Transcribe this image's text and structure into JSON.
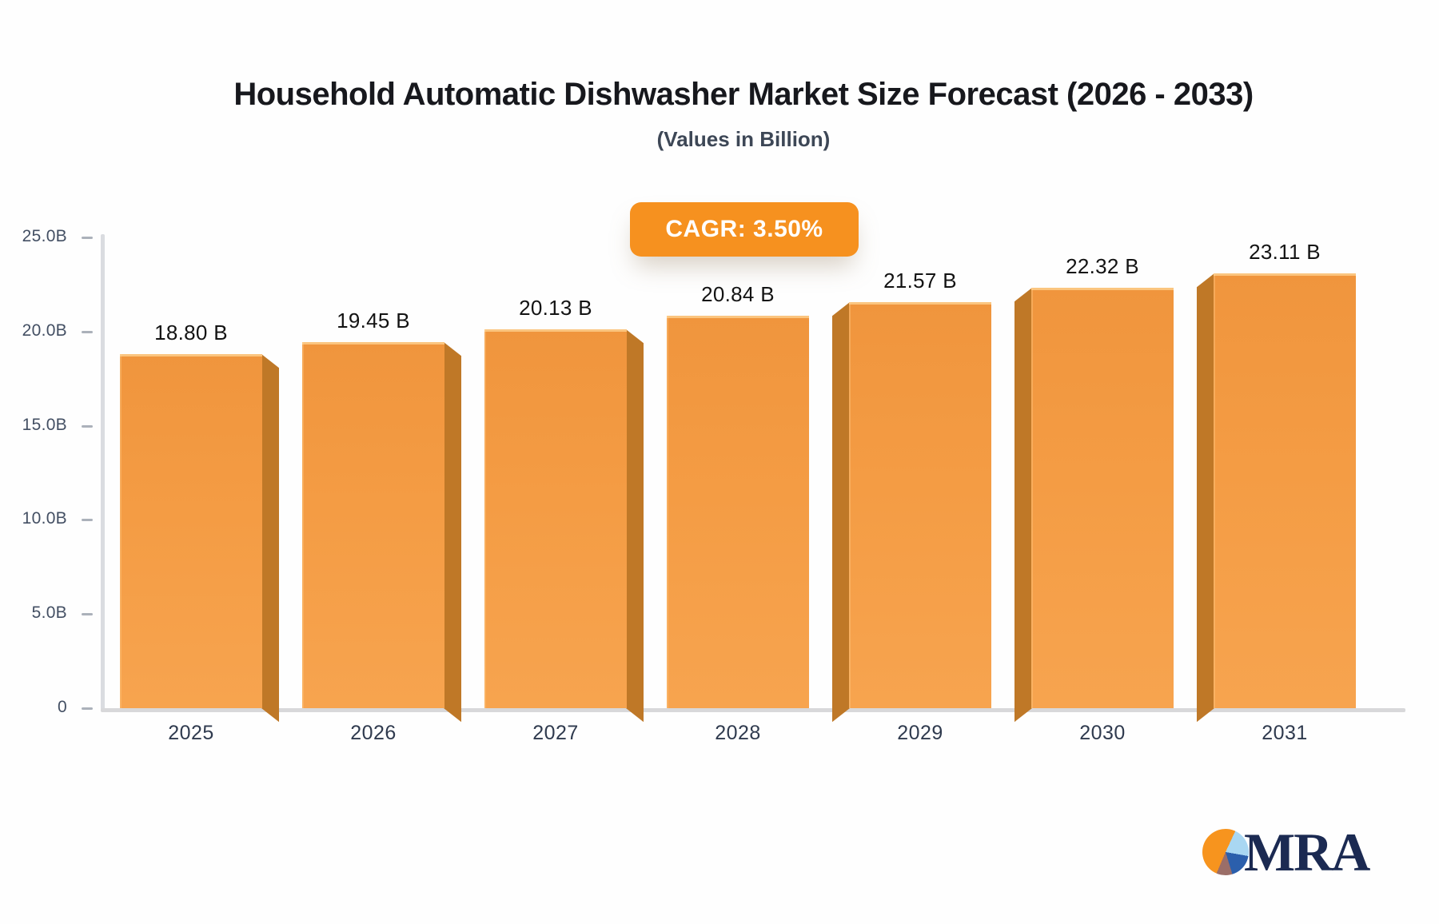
{
  "header": {
    "title": "Household Automatic Dishwasher Market Size Forecast (2026 - 2033)",
    "subtitle": "(Values in Billion)"
  },
  "badge": {
    "label": "CAGR: 3.50%"
  },
  "chart_data": {
    "type": "bar",
    "title": "Household Automatic Dishwasher Market Size Forecast (2026 - 2033)",
    "subtitle": "(Values in Billion)",
    "categories": [
      "2025",
      "2026",
      "2027",
      "2028",
      "2029",
      "2030",
      "2031"
    ],
    "values": [
      18.8,
      19.45,
      20.13,
      20.84,
      21.57,
      22.32,
      23.11
    ],
    "value_labels": [
      "18.80 B",
      "19.45 B",
      "20.13 B",
      "20.84 B",
      "21.57 B",
      "22.32 B",
      "23.11 B"
    ],
    "y_ticks": [
      {
        "label": "25.0B",
        "value": 25
      },
      {
        "label": "20.0B",
        "value": 20
      },
      {
        "label": "15.0B",
        "value": 15
      },
      {
        "label": "10.0B",
        "value": 10
      },
      {
        "label": "5.0B",
        "value": 5
      },
      {
        "label": "0",
        "value": 0
      }
    ],
    "ylim": [
      0,
      25
    ],
    "xlabel": "",
    "ylabel": "",
    "grid": false,
    "legend": "none",
    "cagr": "CAGR: 3.50%",
    "bar_color": "#f49c44",
    "bar_side_color": "#bf7827"
  },
  "logo": {
    "text": "MRA",
    "pie_colors": [
      "#f7941e",
      "#a9d7f2",
      "#2b5fac",
      "#9b6e68"
    ],
    "text_color": "#1b2a52"
  },
  "colors": {
    "accent_orange": "#f6911f",
    "axis_gray": "#dadce0",
    "y_label": "#434f63",
    "x_label": "#2f3a4e",
    "title": "#17181d"
  }
}
